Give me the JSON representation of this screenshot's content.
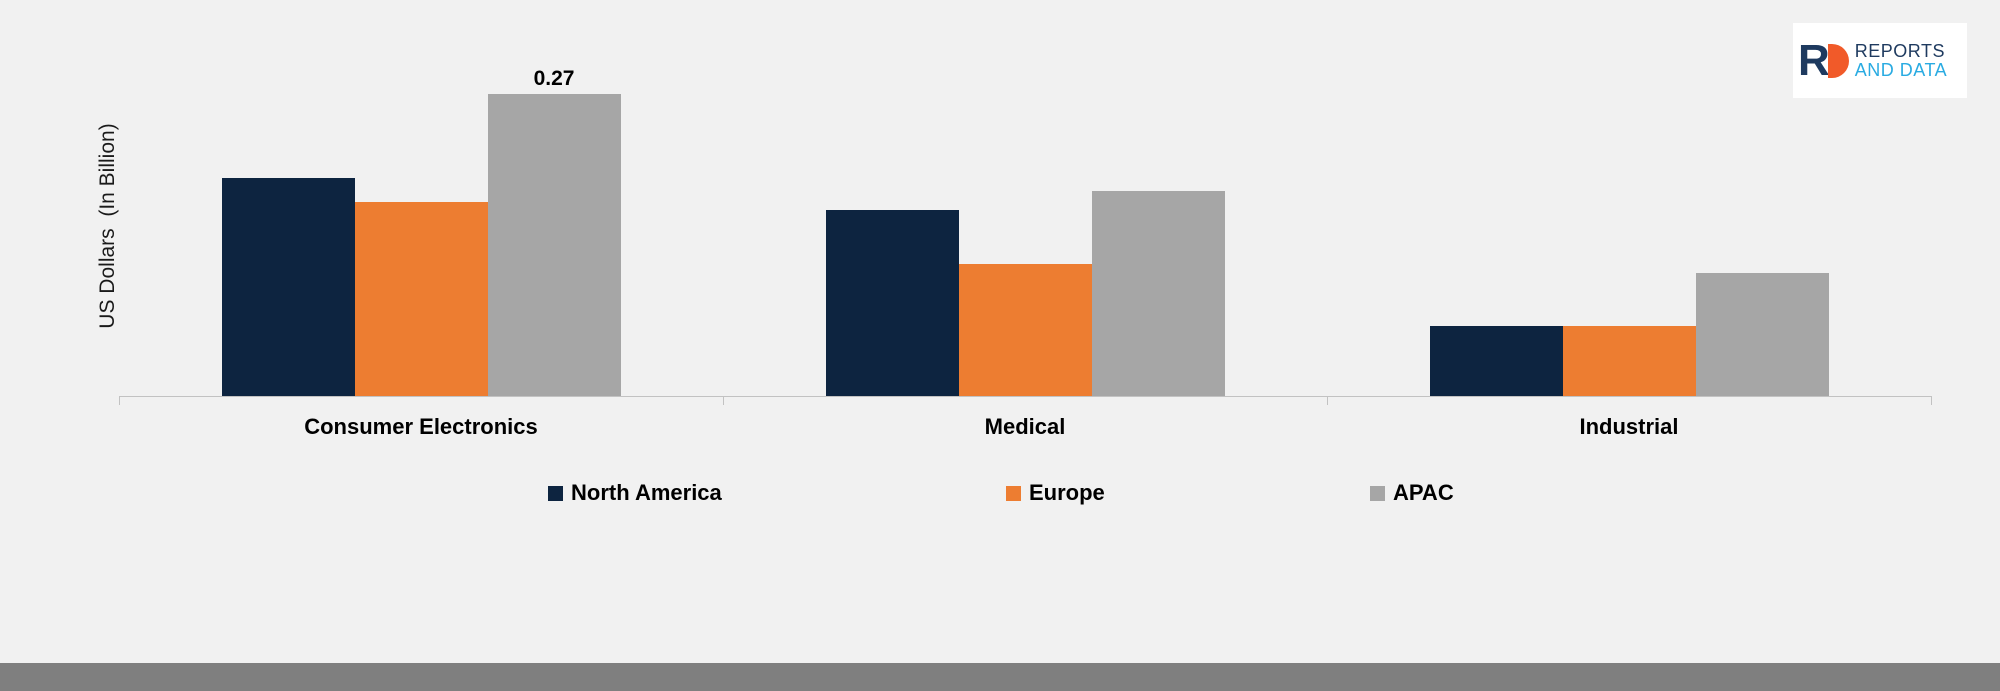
{
  "background_color": "#f1f1f1",
  "chart_data": {
    "type": "bar",
    "title": "",
    "xlabel": "",
    "ylabel": "US Dollars  (In Billion)",
    "categories": [
      "Consumer Electronics",
      "Medical",
      "Industrial"
    ],
    "series": [
      {
        "name": "North America",
        "color": "#0d2440",
        "values": [
          0.195,
          0.166,
          0.063
        ]
      },
      {
        "name": "Europe",
        "color": "#ed7d31",
        "values": [
          0.173,
          0.118,
          0.063
        ]
      },
      {
        "name": "APAC",
        "color": "#a6a6a6",
        "values": [
          0.27,
          0.183,
          0.11
        ]
      }
    ],
    "data_labels": [
      {
        "category_index": 0,
        "series_index": 2,
        "text": "0.27"
      }
    ],
    "ylim": [
      0,
      0.28
    ],
    "grid": false,
    "y_axis_ticks_visible": false,
    "legend_position": "bottom",
    "axis_line_color": "#c2c2c2"
  },
  "legend": {
    "items": [
      "North America",
      "Europe",
      "APAC"
    ]
  },
  "logo": {
    "monogram": "R",
    "line1": "REPORTS",
    "line2": "AND DATA",
    "monogram_color": "#1e3a5f",
    "d_color": "#f15a29",
    "line1_color": "#1e3a5f",
    "line2_color": "#29abe2",
    "box_color": "#ffffff"
  },
  "footer": {
    "color": "#7f7f7f"
  }
}
